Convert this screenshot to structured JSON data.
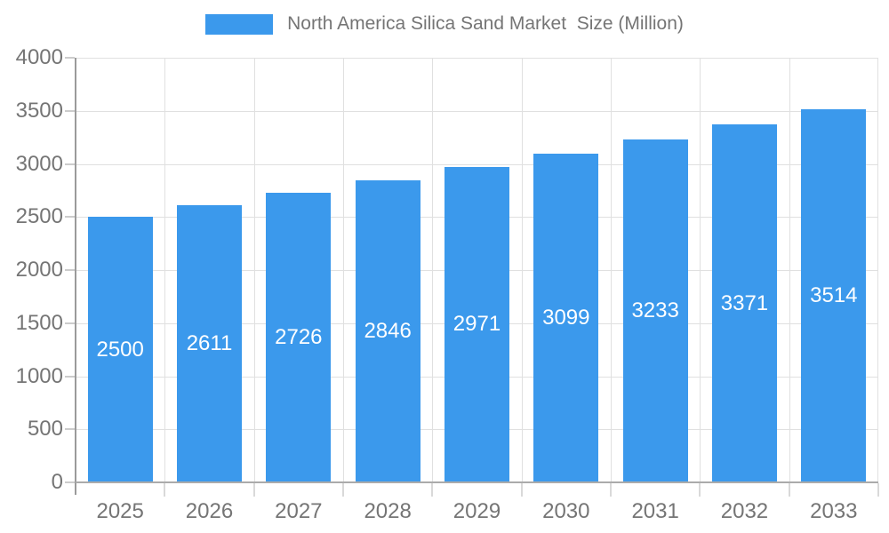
{
  "legend": {
    "label": "North America Silica Sand Market  Size (Million)",
    "swatch_color": "#3B99EC",
    "position": "top"
  },
  "chart_data": {
    "type": "bar",
    "title": "North America Silica Sand Market  Size (Million)",
    "categories": [
      "2025",
      "2026",
      "2027",
      "2028",
      "2029",
      "2030",
      "2031",
      "2032",
      "2033"
    ],
    "series": [
      {
        "name": "North America Silica Sand Market  Size (Million)",
        "values": [
          2500,
          2611,
          2726,
          2846,
          2971,
          3099,
          3233,
          3371,
          3514
        ]
      }
    ],
    "data_labels_inside_bars": true,
    "xlabel": "",
    "ylabel": "",
    "ylim": [
      0,
      4000
    ],
    "y_ticks": [
      0,
      500,
      1000,
      1500,
      2000,
      2500,
      3000,
      3500,
      4000
    ],
    "grid": true,
    "legend_position": "top"
  },
  "colors": {
    "bar": "#3B99EC",
    "bar_label": "#FFFFFF",
    "axis_line": "#9A9A9A",
    "grid_line": "#E0E0E0",
    "tick_mark": "#CCCCCC",
    "axis_text": "#757575",
    "background": "#FFFFFF"
  }
}
